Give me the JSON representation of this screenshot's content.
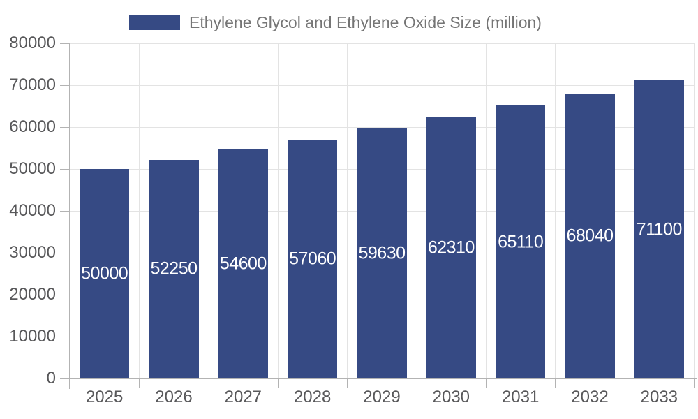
{
  "legend": {
    "items": [
      {
        "label": "Ethylene Glycol and Ethylene Oxide Size (million)",
        "swatch_color": "#364A84"
      }
    ]
  },
  "chart_data": {
    "type": "bar",
    "title": "Ethylene Glycol and Ethylene Oxide Size (million)",
    "categories": [
      "2025",
      "2026",
      "2027",
      "2028",
      "2029",
      "2030",
      "2031",
      "2032",
      "2033"
    ],
    "series": [
      {
        "name": "Ethylene Glycol and Ethylene Oxide Size (million)",
        "values": [
          50000,
          52250,
          54600,
          57060,
          59630,
          62310,
          65110,
          68040,
          71100
        ],
        "color": "#364A84"
      }
    ],
    "value_labels": [
      "50000",
      "52250",
      "54600",
      "57060",
      "59630",
      "62310",
      "65110",
      "68040",
      "71100"
    ],
    "xlabel": "",
    "ylabel": "",
    "ylim": [
      0,
      80000
    ],
    "ytick_step": 10000,
    "ytick_labels": [
      "0",
      "10000",
      "20000",
      "30000",
      "40000",
      "50000",
      "60000",
      "70000",
      "80000"
    ],
    "grid": true,
    "legend_position": "top"
  },
  "colors": {
    "background": "#ffffff",
    "bar": "#364A84",
    "grid_line": "#e3e3e3",
    "axis_line": "#b3b3b3",
    "tick_label": "#58585a",
    "legend_text": "#757575",
    "value_label": "#ffffff"
  }
}
